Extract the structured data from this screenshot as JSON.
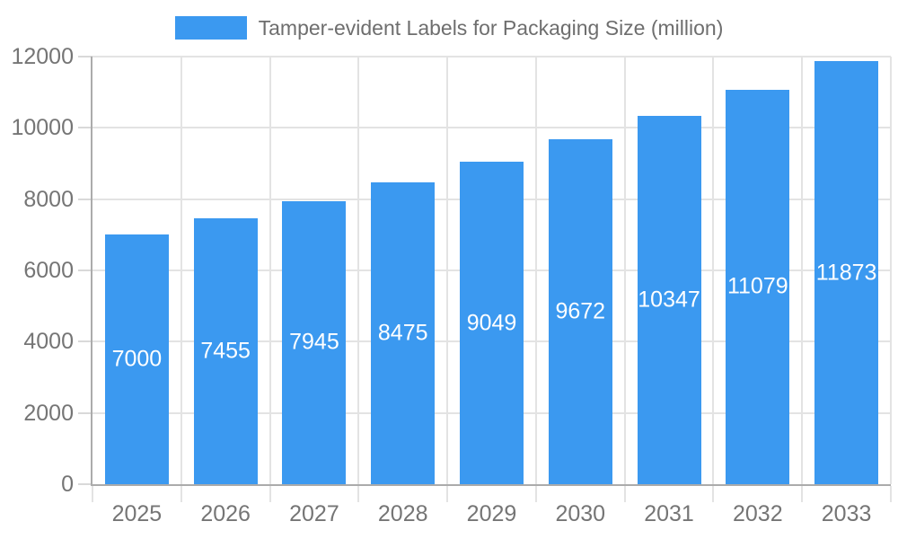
{
  "chart_data": {
    "type": "bar",
    "title": "Tamper-evident Labels for Packaging Size (million)",
    "categories": [
      "2025",
      "2026",
      "2027",
      "2028",
      "2029",
      "2030",
      "2031",
      "2032",
      "2033"
    ],
    "values": [
      7000,
      7455,
      7945,
      8475,
      9049,
      9672,
      10347,
      11079,
      11873
    ],
    "xlabel": "",
    "ylabel": "",
    "ylim": [
      0,
      12000
    ],
    "ytick_step": 2000,
    "ytick_labels": [
      "0",
      "2000",
      "4000",
      "6000",
      "8000",
      "10000",
      "12000"
    ],
    "grid": true,
    "legend_position": "top",
    "value_labels_position": "inside-center",
    "colors": {
      "bar": "#3B99F0",
      "value_label": "#FFFFFF",
      "axis_text": "#757575",
      "legend_text": "#6E6E6E",
      "gridline": "#E3E3E3",
      "tick": "#D9D9D9",
      "axis_line": "#ABABAB",
      "background": "#FFFFFF"
    }
  }
}
